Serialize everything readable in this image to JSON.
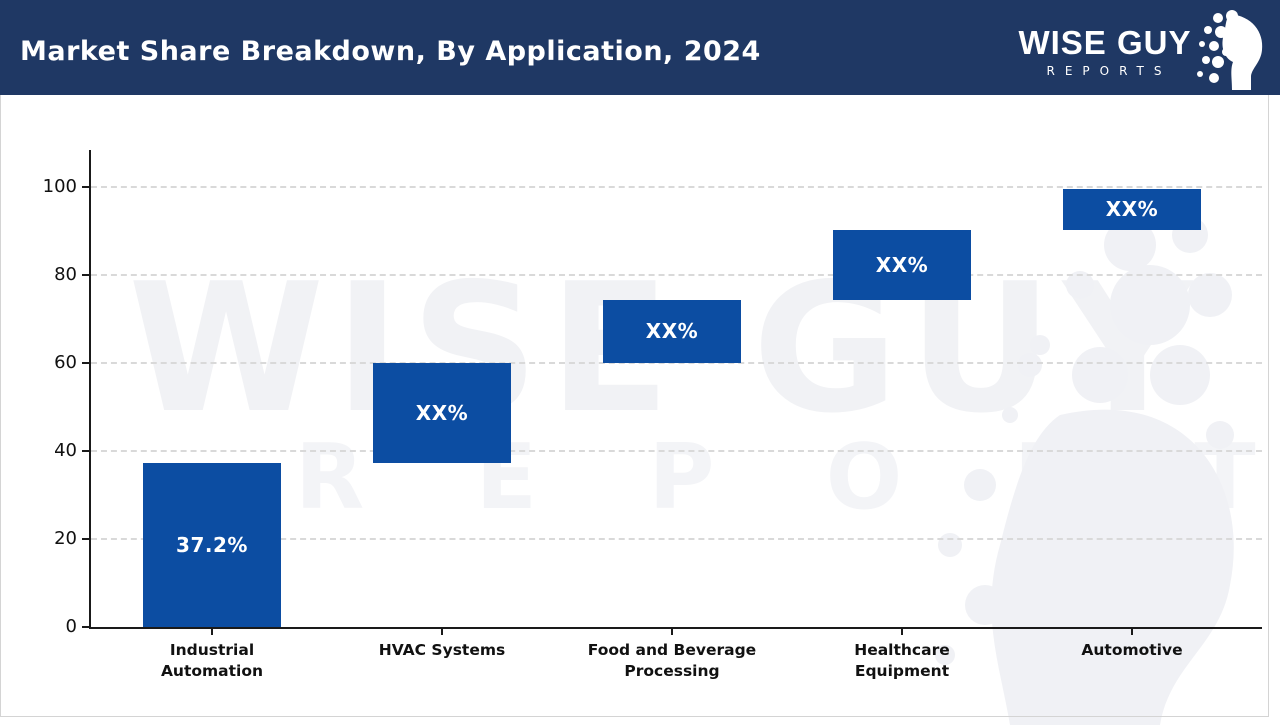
{
  "header": {
    "title": "Market Share Breakdown, By Application, 2024",
    "bg_color": "#1F3864",
    "logo": {
      "line1": "WISE GUY",
      "line2": "REPORTS"
    }
  },
  "watermark": {
    "line1": "WISE GUY",
    "line2": "R E P O R T S"
  },
  "chart_data": {
    "type": "bar",
    "variant": "waterfall",
    "title": "Market Share Breakdown, By Application, 2024",
    "categories": [
      "Industrial Automation",
      "HVAC Systems",
      "Food and Beverage Processing",
      "Healthcare Equipment",
      "Automotive"
    ],
    "bars": [
      {
        "category": "Industrial Automation",
        "label_lines": [
          "Industrial",
          "Automation"
        ],
        "start": 0,
        "end": 37.2,
        "value_label": "37.2%"
      },
      {
        "category": "HVAC Systems",
        "label_lines": [
          "HVAC Systems"
        ],
        "start": 37.2,
        "end": 60.0,
        "value_label": "XX%"
      },
      {
        "category": "Food and Beverage Processing",
        "label_lines": [
          "Food and Beverage",
          "Processing"
        ],
        "start": 60.0,
        "end": 74.4,
        "value_label": "XX%"
      },
      {
        "category": "Healthcare Equipment",
        "label_lines": [
          "Healthcare",
          "Equipment"
        ],
        "start": 74.4,
        "end": 90.2,
        "value_label": "XX%"
      },
      {
        "category": "Automotive",
        "label_lines": [
          "Automotive"
        ],
        "start": 90.2,
        "end": 99.6,
        "value_label": "XX%"
      }
    ],
    "ylim": [
      0,
      100
    ],
    "yticks": [
      0,
      20,
      40,
      60,
      80,
      100
    ],
    "grid": "horizontal-dashed",
    "legend": "none",
    "bar_color": "#0C4DA2",
    "value_label_color": "#ffffff",
    "axis_color": "#1a1a1a",
    "grid_color": "#d9d9d9"
  }
}
